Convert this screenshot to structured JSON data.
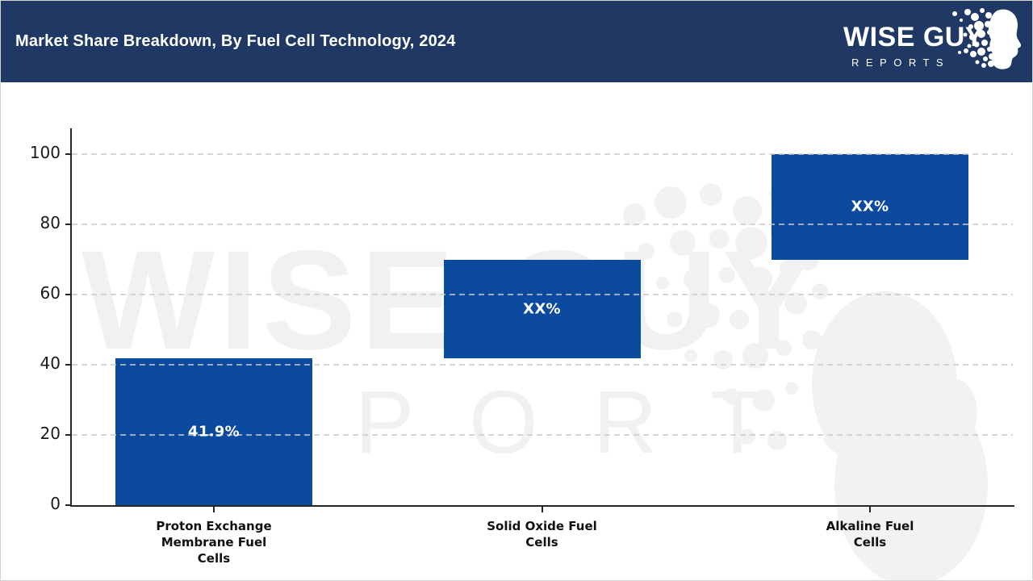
{
  "header": {
    "title": "Market Share Breakdown, By Fuel Cell Technology, 2024",
    "logo": {
      "name": "wise-guy-reports-logo",
      "line1": "WISE GUY",
      "line2": "REPORTS"
    }
  },
  "watermark": {
    "line1": "WISE GUY",
    "line2": "REPORTS"
  },
  "chart_data": {
    "type": "bar",
    "subtype": "waterfall",
    "title": "Market Share Breakdown, By Fuel Cell Technology, 2024",
    "categories": [
      "Proton Exchange Membrane Fuel Cells",
      "Solid Oxide Fuel Cells",
      "Alkaline Fuel Cells"
    ],
    "categories_wrapped": [
      [
        "Proton Exchange",
        "Membrane Fuel",
        "Cells"
      ],
      [
        "Solid Oxide Fuel",
        "Cells"
      ],
      [
        "Alkaline Fuel",
        "Cells"
      ]
    ],
    "series": [
      {
        "name": "Market Share",
        "segments": [
          {
            "category": "Proton Exchange Membrane Fuel Cells",
            "start": 0,
            "end": 41.9,
            "label": "41.9%"
          },
          {
            "category": "Solid Oxide Fuel Cells",
            "start": 41.9,
            "end": 69.9,
            "label": "XX%"
          },
          {
            "category": "Alkaline Fuel Cells",
            "start": 69.9,
            "end": 100,
            "label": "XX%"
          }
        ]
      }
    ],
    "ylim": [
      0,
      100
    ],
    "yticks": [
      0,
      20,
      40,
      60,
      80,
      100
    ],
    "xlabel": "",
    "ylabel": "",
    "grid": "horizontal-dashed",
    "legend": "none",
    "bar_color": "#0b4a9e",
    "bar_label_color": "#ffffff",
    "axis_color": "#262626",
    "gridline_color": "#c9c9c9",
    "header_bg": "#1f3864",
    "watermark_color": "#f1f1f3"
  }
}
